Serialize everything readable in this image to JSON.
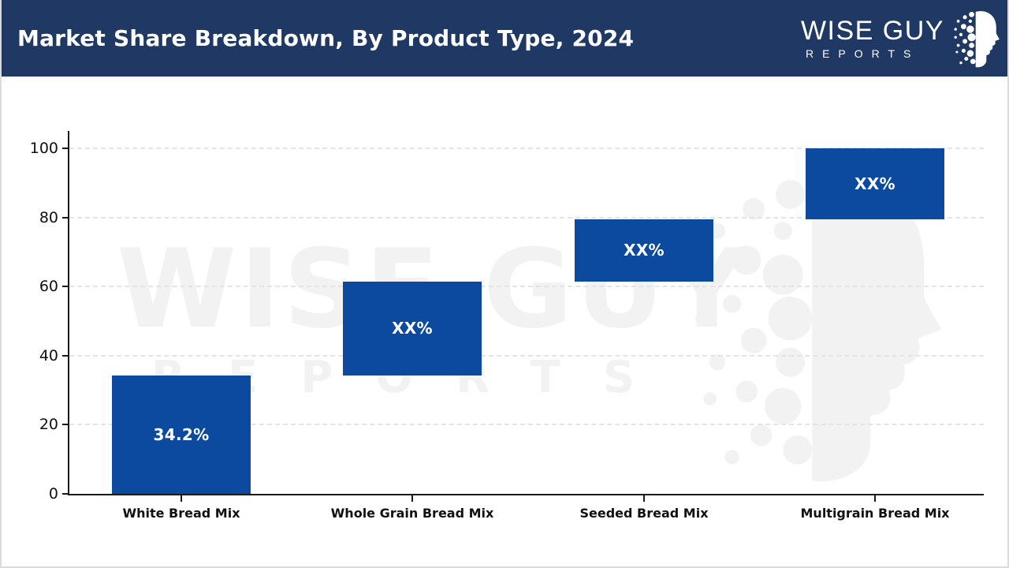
{
  "header": {
    "title": "Market Share Breakdown, By Product Type, 2024",
    "bg_color": "#1F3864",
    "logo": {
      "wordmark": "WISE GUY",
      "subtext": "REPORTS",
      "head_icon": "dotted-head-profile-icon"
    }
  },
  "watermark": {
    "wordmark": "WISE GUY",
    "subtext": "REPORTS"
  },
  "chart_data": {
    "type": "bar",
    "subtype": "waterfall",
    "title": "Market Share Breakdown, By Product Type, 2024",
    "xlabel": "",
    "ylabel": "",
    "ylim": [
      0,
      105
    ],
    "yticks": [
      0,
      20,
      40,
      60,
      80,
      100
    ],
    "grid": "horizontal-dashed",
    "legend": "none",
    "bar_color": "#0B4A9F",
    "bar_label_color": "#FFFFFF",
    "categories": [
      "White Bread Mix",
      "Whole Grain Bread Mix",
      "Seeded Bread Mix",
      "Multigrain Bread Mix"
    ],
    "segments": [
      {
        "category": "White Bread Mix",
        "start": 0,
        "end": 34.2,
        "label": "34.2%"
      },
      {
        "category": "Whole Grain Bread Mix",
        "start": 34.2,
        "end": 61.5,
        "label": "XX%"
      },
      {
        "category": "Seeded Bread Mix",
        "start": 61.5,
        "end": 79.5,
        "label": "XX%"
      },
      {
        "category": "Multigrain Bread Mix",
        "start": 79.5,
        "end": 100,
        "label": "XX%"
      }
    ]
  }
}
